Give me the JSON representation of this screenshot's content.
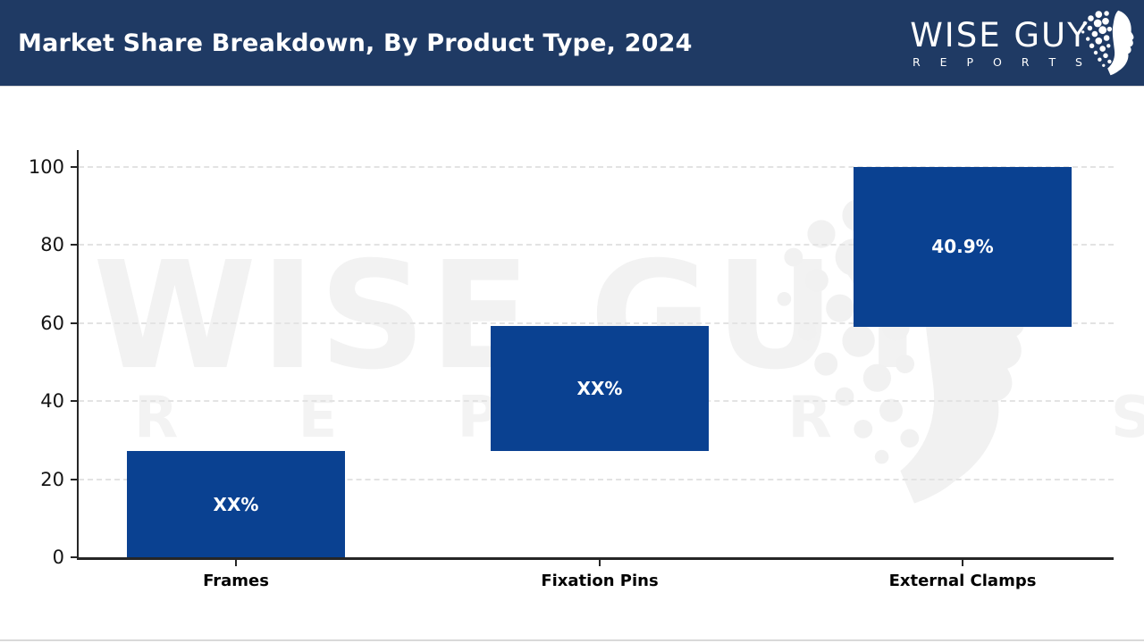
{
  "header": {
    "title": "Market Share Breakdown, By Product Type, 2024",
    "logo": {
      "wordmark": "WISE GUY",
      "subtext": "R E P O R T S"
    }
  },
  "watermark": {
    "wordmark": "WISE GUY",
    "subtext": "R E P O R T S"
  },
  "chart_data": {
    "type": "bar",
    "subtype": "waterfall-stacked",
    "title": "Market Share Breakdown, By Product Type, 2024",
    "categories": [
      "Frames",
      "Fixation Pins",
      "External Clamps"
    ],
    "series": [
      {
        "name": "Market Share (%)",
        "segments": [
          {
            "category": "Frames",
            "start": 0,
            "end": 27.2,
            "label": "XX%"
          },
          {
            "category": "Fixation Pins",
            "start": 27.2,
            "end": 59.2,
            "label": "XX%"
          },
          {
            "category": "External Clamps",
            "start": 59.1,
            "end": 100,
            "label": "40.9%"
          }
        ]
      }
    ],
    "ylim": [
      0,
      105
    ],
    "yticks": [
      0,
      20,
      40,
      60,
      80,
      100
    ],
    "xlabel": "",
    "ylabel": "",
    "grid": "horizontal-dashed",
    "legend": "none",
    "bar_color": "#0a4191",
    "label_color": "#ffffff"
  },
  "colors": {
    "header_bg": "#1f3a64",
    "axis": "#262626",
    "grid": "#e3e3e3",
    "watermark": "#f2f2f2",
    "divider": "#d9d9d9"
  }
}
